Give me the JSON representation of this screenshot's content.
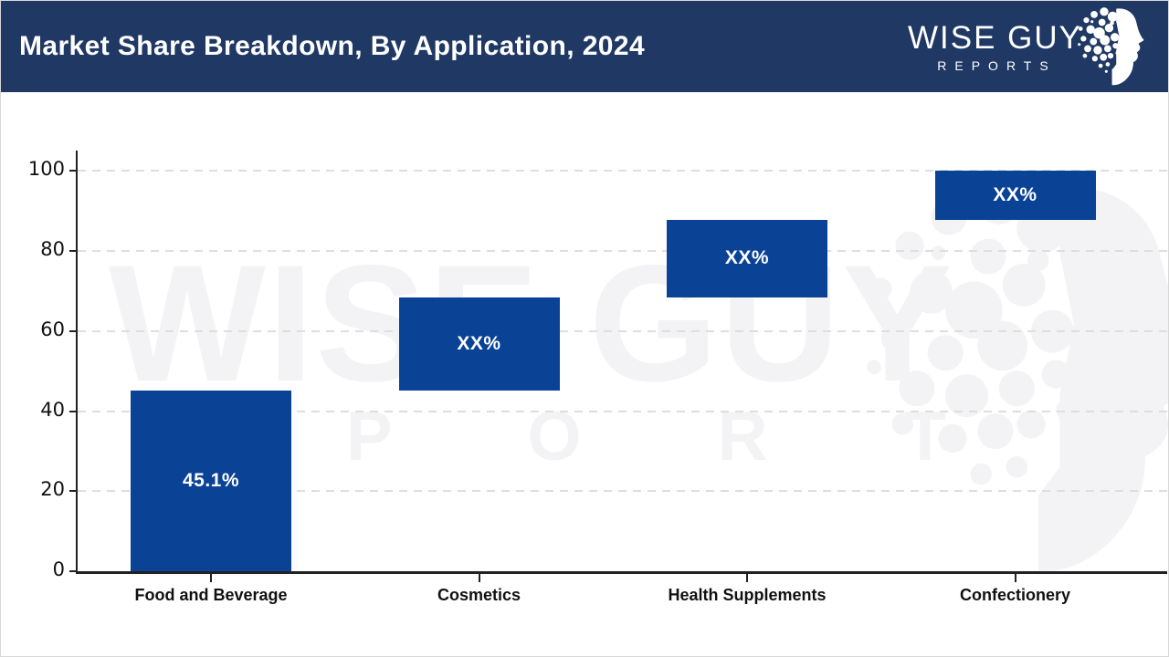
{
  "header": {
    "title": "Market Share Breakdown, By Application, 2024",
    "bg_color": "#1F3864",
    "logo": {
      "line1": "WISE GUY",
      "line2": "REPORTS",
      "head_icon": "dotted-head-profile-icon"
    }
  },
  "watermark": {
    "line1": "WISE GUY",
    "line2": "P O R T S",
    "head_icon": "dotted-head-profile-icon",
    "color": "#f3f3f5"
  },
  "chart_data": {
    "type": "bar",
    "subtype": "waterfall",
    "title": "Market Share Breakdown, By Application, 2024",
    "categories": [
      "Food and Beverage",
      "Cosmetics",
      "Health Supplements",
      "Confectionery"
    ],
    "segments": [
      {
        "start": 0,
        "end": 45.1,
        "label": "45.1%"
      },
      {
        "start": 45.1,
        "end": 68.4,
        "label": "XX%"
      },
      {
        "start": 68.4,
        "end": 87.9,
        "label": "XX%"
      },
      {
        "start": 87.9,
        "end": 100.0,
        "label": "XX%"
      }
    ],
    "values_delta": [
      45.1,
      23.3,
      19.5,
      12.1
    ],
    "bar_labels": [
      "45.1%",
      "XX%",
      "XX%",
      "XX%"
    ],
    "y_ticks": [
      0,
      20,
      40,
      60,
      80,
      100
    ],
    "ylim": [
      0,
      105
    ],
    "xlabel": "",
    "ylabel": "",
    "bar_color": "#0A4296",
    "grid": "horizontal-dashed",
    "grid_color": "#dedede",
    "axis_color": "#222222",
    "legend": "none"
  }
}
